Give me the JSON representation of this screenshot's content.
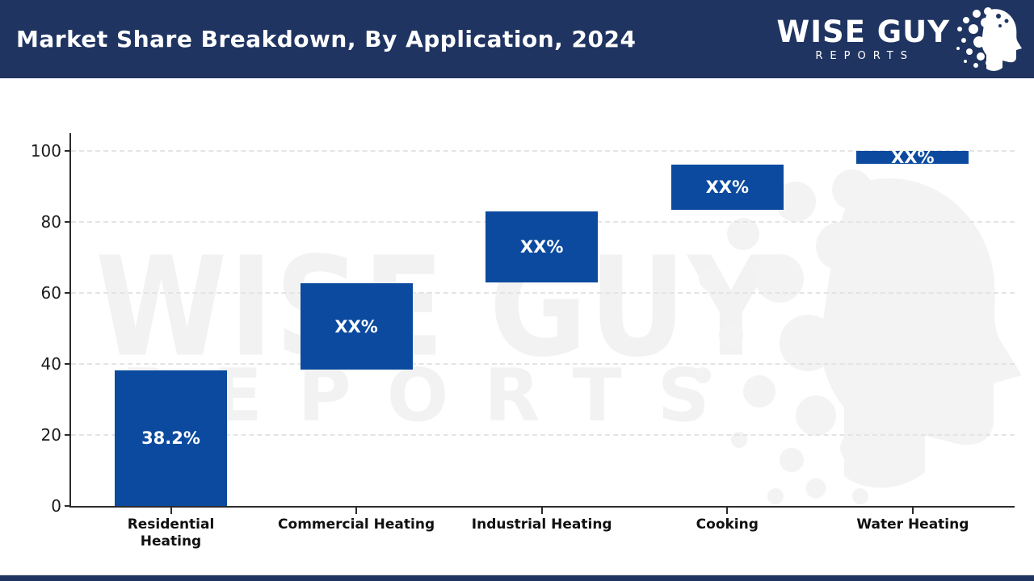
{
  "header": {
    "title": "Market Share Breakdown, By Application, 2024",
    "logo": {
      "name": "WISE GUY",
      "subtitle": "REPORTS"
    }
  },
  "watermark": {
    "line1": "WISE GUY",
    "line2": "REPORTS"
  },
  "chart_data": {
    "type": "bar",
    "subtype": "waterfall",
    "title": "Market Share Breakdown, By Application, 2024",
    "categories": [
      "Residential\nHeating",
      "Commercial Heating",
      "Industrial Heating",
      "Cooking",
      "Water Heating"
    ],
    "bars": [
      {
        "category": "Residential Heating",
        "start": 0,
        "end": 38.2,
        "label": "38.2%"
      },
      {
        "category": "Commercial Heating",
        "start": 38.4,
        "end": 62.7,
        "label": "XX%"
      },
      {
        "category": "Industrial Heating",
        "start": 63.0,
        "end": 83.0,
        "label": "XX%"
      },
      {
        "category": "Cooking",
        "start": 83.4,
        "end": 96.1,
        "label": "XX%"
      },
      {
        "category": "Water Heating",
        "start": 96.4,
        "end": 100.0,
        "label": "XX%"
      }
    ],
    "ylim": [
      0,
      100
    ],
    "yticks": [
      0,
      20,
      40,
      60,
      80,
      100
    ],
    "xlabel": "",
    "ylabel": "",
    "grid": "horizontal-dashed",
    "legend": "none",
    "bar_color": "#0b4a9f",
    "value_label_color": "#ffffff"
  },
  "colors": {
    "header_bg": "#1f3461",
    "footer_bg": "#1f3461",
    "bar": "#0b4a9f",
    "gridline": "#e4e4e4",
    "axis": "#2b2b2b",
    "watermark": "#f2f2f3"
  }
}
